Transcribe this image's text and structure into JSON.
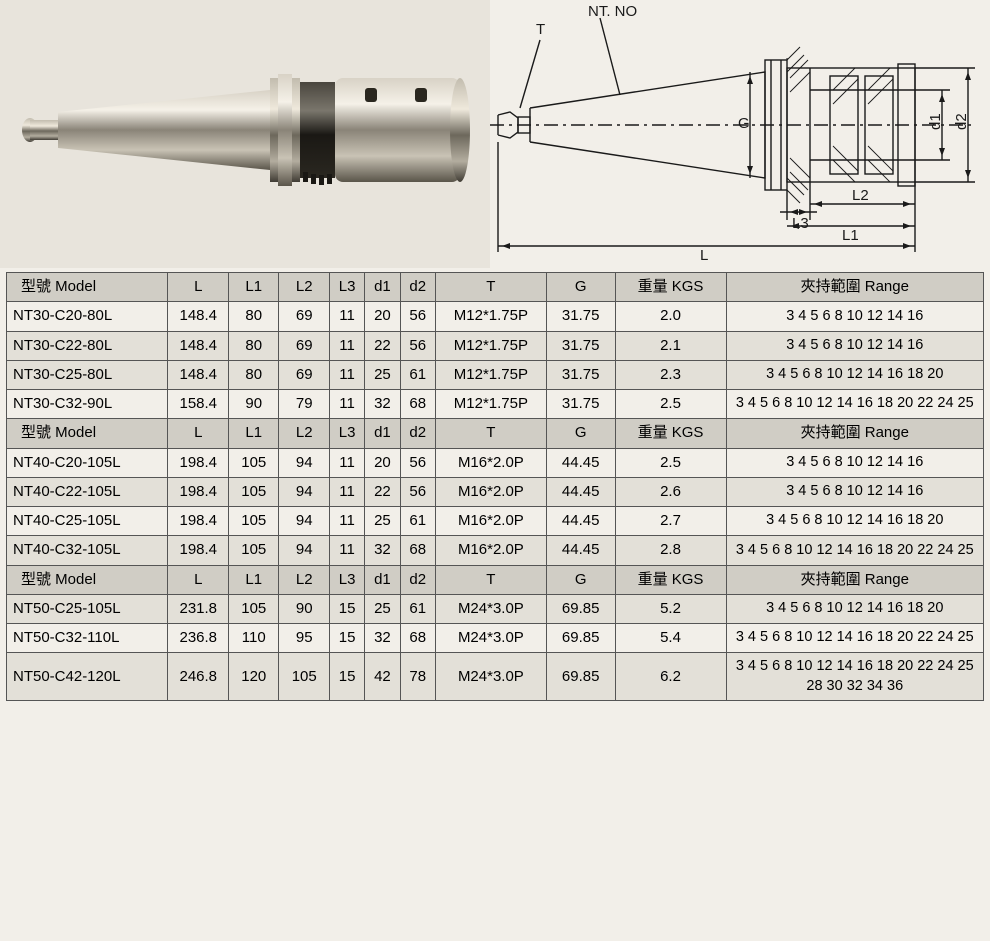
{
  "diagram": {
    "label_T": "T",
    "label_NTNO": "NT. NO",
    "label_G": "G",
    "label_d1": "d1",
    "label_d2": "d2",
    "label_L": "L",
    "label_L1": "L1",
    "label_L2": "L2",
    "label_L3": "L3",
    "stroke": "#1a1a1a",
    "stroke_width": 1.4,
    "hatch_stroke": "#1a1a1a",
    "font_size": 15
  },
  "headers": {
    "model": "型號  Model",
    "L": "L",
    "L1": "L1",
    "L2": "L2",
    "L3": "L3",
    "d1": "d1",
    "d2": "d2",
    "T": "T",
    "G": "G",
    "weight": "重量 KGS",
    "range": "夾持範圍 Range"
  },
  "col_widths": [
    "160",
    "60",
    "50",
    "50",
    "35",
    "35",
    "35",
    "110",
    "68",
    "110",
    "255"
  ],
  "groups": [
    {
      "rows": [
        {
          "model": "NT30-C20-80L",
          "L": "148.4",
          "L1": "80",
          "L2": "69",
          "L3": "11",
          "d1": "20",
          "d2": "56",
          "T": "M12*1.75P",
          "G": "31.75",
          "kgs": "2.0",
          "range": "3 4 5 6 8 10 12 14 16",
          "alt": false
        },
        {
          "model": "NT30-C22-80L",
          "L": "148.4",
          "L1": "80",
          "L2": "69",
          "L3": "11",
          "d1": "22",
          "d2": "56",
          "T": "M12*1.75P",
          "G": "31.75",
          "kgs": "2.1",
          "range": "3 4 5 6 8 10 12 14 16",
          "alt": true
        },
        {
          "model": "NT30-C25-80L",
          "L": "148.4",
          "L1": "80",
          "L2": "69",
          "L3": "11",
          "d1": "25",
          "d2": "61",
          "T": "M12*1.75P",
          "G": "31.75",
          "kgs": "2.3",
          "range": "3 4 5 6 8 10 12 14 16 18 20",
          "alt": true
        },
        {
          "model": "NT30-C32-90L",
          "L": "158.4",
          "L1": "90",
          "L2": "79",
          "L3": "11",
          "d1": "32",
          "d2": "68",
          "T": "M12*1.75P",
          "G": "31.75",
          "kgs": "2.5",
          "range": "3 4 5 6 8 10 12 14 16 18 20 22 24 25",
          "alt": false
        }
      ]
    },
    {
      "rows": [
        {
          "model": "NT40-C20-105L",
          "L": "198.4",
          "L1": "105",
          "L2": "94",
          "L3": "11",
          "d1": "20",
          "d2": "56",
          "T": "M16*2.0P",
          "G": "44.45",
          "kgs": "2.5",
          "range": "3 4 5 6 8 10 12 14 16",
          "alt": false
        },
        {
          "model": "NT40-C22-105L",
          "L": "198.4",
          "L1": "105",
          "L2": "94",
          "L3": "11",
          "d1": "22",
          "d2": "56",
          "T": "M16*2.0P",
          "G": "44.45",
          "kgs": "2.6",
          "range": "3 4 5 6 8 10 12 14 16",
          "alt": true
        },
        {
          "model": "NT40-C25-105L",
          "L": "198.4",
          "L1": "105",
          "L2": "94",
          "L3": "11",
          "d1": "25",
          "d2": "61",
          "T": "M16*2.0P",
          "G": "44.45",
          "kgs": "2.7",
          "range": "3 4 5 6 8 10 12 14 16 18 20",
          "alt": false
        },
        {
          "model": "NT40-C32-105L",
          "L": "198.4",
          "L1": "105",
          "L2": "94",
          "L3": "11",
          "d1": "32",
          "d2": "68",
          "T": "M16*2.0P",
          "G": "44.45",
          "kgs": "2.8",
          "range": "3 4 5 6 8 10 12 14 16 18 20 22 24 25",
          "alt": true
        }
      ]
    },
    {
      "rows": [
        {
          "model": "NT50-C25-105L",
          "L": "231.8",
          "L1": "105",
          "L2": "90",
          "L3": "15",
          "d1": "25",
          "d2": "61",
          "T": "M24*3.0P",
          "G": "69.85",
          "kgs": "5.2",
          "range": "3 4 5 6 8 10 12 14 16 18 20",
          "alt": true
        },
        {
          "model": "NT50-C32-110L",
          "L": "236.8",
          "L1": "110",
          "L2": "95",
          "L3": "15",
          "d1": "32",
          "d2": "68",
          "T": "M24*3.0P",
          "G": "69.85",
          "kgs": "5.4",
          "range": "3 4 5 6 8 10 12 14 16 18 20 22 24 25",
          "alt": false
        },
        {
          "model": "NT50-C42-120L",
          "L": "246.8",
          "L1": "120",
          "L2": "105",
          "L3": "15",
          "d1": "42",
          "d2": "78",
          "T": "M24*3.0P",
          "G": "69.85",
          "kgs": "6.2",
          "range": "3 4 5 6 8 10 12 14 16 18 20 22 24 25 28 30 32 34 36",
          "alt": true
        }
      ]
    }
  ]
}
